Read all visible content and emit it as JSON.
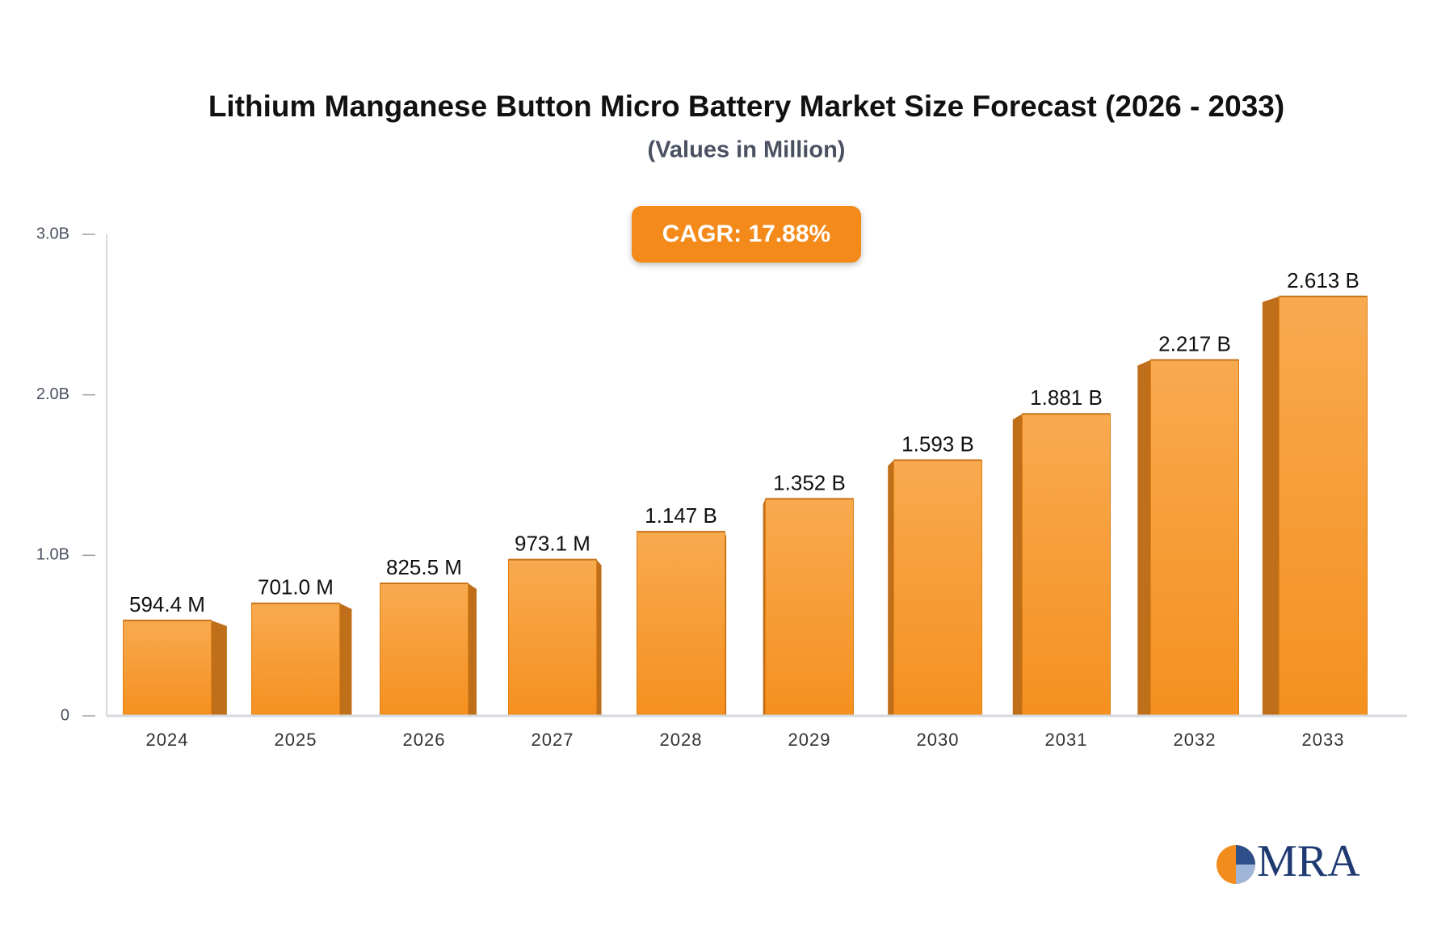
{
  "chart_data": {
    "type": "bar",
    "title": "Lithium Manganese Button Micro Battery Market Size Forecast (2026 - 2033)",
    "subtitle": "(Values in Million)",
    "annotation": "CAGR: 17.88%",
    "categories": [
      "2024",
      "2025",
      "2026",
      "2027",
      "2028",
      "2029",
      "2030",
      "2031",
      "2032",
      "2033"
    ],
    "values": [
      594.4,
      701.0,
      825.5,
      973.1,
      1147,
      1352,
      1593,
      1881,
      2217,
      2613
    ],
    "value_labels": [
      "594.4 M",
      "701.0 M",
      "825.5 M",
      "973.1 M",
      "1.147 B",
      "1.352 B",
      "1.593 B",
      "1.881 B",
      "2.217 B",
      "2.613 B"
    ],
    "color": "#f7962a",
    "ylim": [
      0,
      3000
    ],
    "yticks": [
      0,
      {
        "value": 1000,
        "label": "1.0B"
      },
      {
        "value": 2000,
        "label": "2.0B"
      },
      {
        "value": 3000,
        "label": "3.0B"
      }
    ],
    "grid": false
  },
  "logo": {
    "text": "MRA"
  }
}
